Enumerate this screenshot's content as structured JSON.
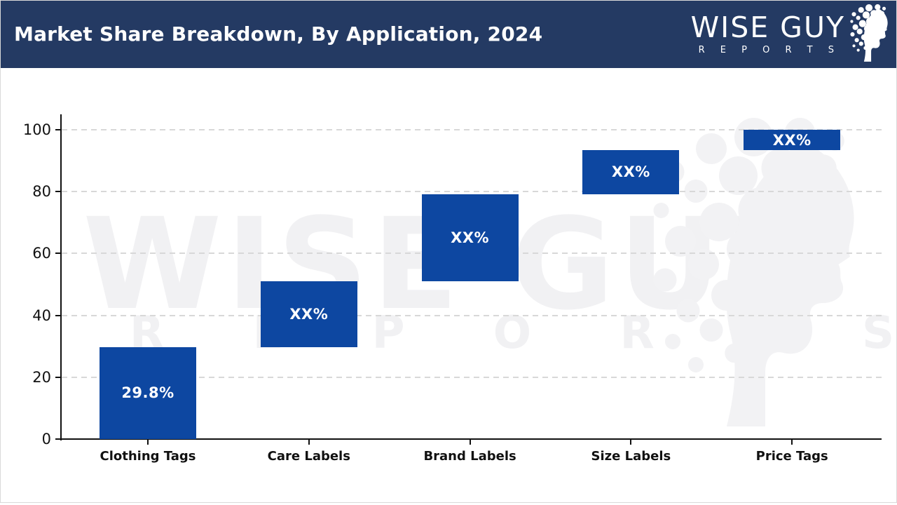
{
  "header": {
    "title": "Market Share Breakdown, By Application, 2024",
    "bg_color": "#243a63",
    "logo": {
      "line1": "WISE GUY",
      "line2": "R E P O R T S"
    }
  },
  "watermark": {
    "line1": "WISE GUY",
    "line2": "R E P O R T S"
  },
  "chart_data": {
    "type": "bar",
    "subtype": "waterfall",
    "title": "Market Share Breakdown, By Application, 2024",
    "categories": [
      "Clothing Tags",
      "Care Labels",
      "Brand Labels",
      "Size Labels",
      "Price Tags"
    ],
    "segments": [
      {
        "category": "Clothing Tags",
        "start": 0,
        "end": 29.8,
        "label": "29.8%"
      },
      {
        "category": "Care Labels",
        "start": 29.8,
        "end": 51.0,
        "label": "XX%"
      },
      {
        "category": "Brand Labels",
        "start": 51.0,
        "end": 79.2,
        "label": "XX%"
      },
      {
        "category": "Size Labels",
        "start": 79.2,
        "end": 93.4,
        "label": "XX%"
      },
      {
        "category": "Price Tags",
        "start": 93.4,
        "end": 100,
        "label": "XX%"
      }
    ],
    "y_ticks": [
      0,
      20,
      40,
      60,
      80,
      100
    ],
    "ylim": [
      0,
      105
    ],
    "xlabel": "",
    "ylabel": "",
    "grid": "horizontal-dashed",
    "legend": "none",
    "bar_color": "#0d47a1",
    "bar_label_color": "#ffffff",
    "axis_color": "#111111",
    "gridline_color": "#d8d8d8"
  }
}
